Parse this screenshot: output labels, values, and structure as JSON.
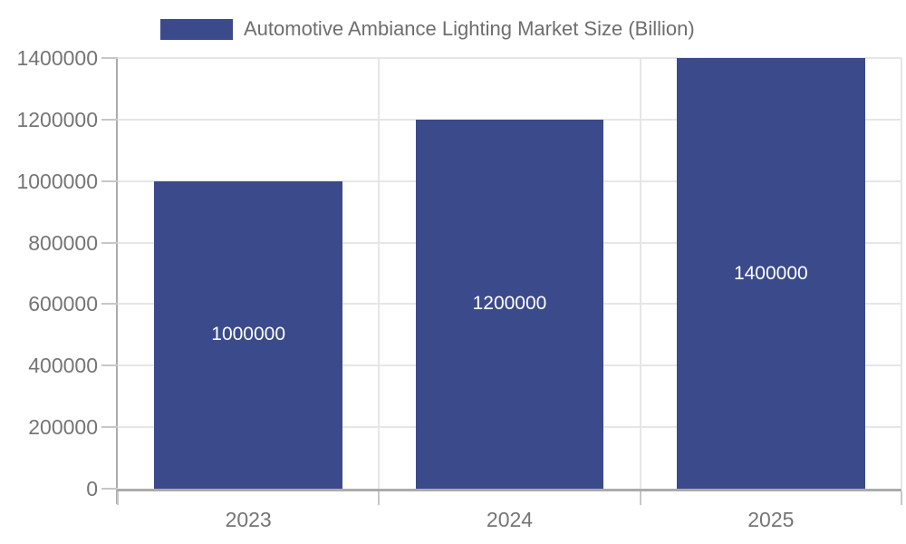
{
  "chart_data": {
    "type": "bar",
    "title": "Automotive Ambiance Lighting Market Size (Billion)",
    "categories": [
      "2023",
      "2024",
      "2025"
    ],
    "values": [
      1000000,
      1200000,
      1400000
    ],
    "bar_labels": [
      "1000000",
      "1200000",
      "1400000"
    ],
    "xlabel": "",
    "ylabel": "",
    "ylim": [
      0,
      1400000
    ],
    "yticks": [
      0,
      200000,
      400000,
      600000,
      800000,
      1000000,
      1200000,
      1400000
    ],
    "ytick_labels": [
      "0",
      "200000",
      "400000",
      "600000",
      "800000",
      "1000000",
      "1200000",
      "1400000"
    ],
    "grid": true,
    "legend_position": "top-left",
    "colors": {
      "bar": "#3A4A8B",
      "bar_label_text": "#FFFFFF",
      "tick_text": "#757575",
      "legend_text": "#6E6E6E",
      "gridline": "#E6E6E6",
      "axis_line": "#ABABAB",
      "tick_mark": "#C7C7C7",
      "background": "#FFFFFF"
    }
  }
}
